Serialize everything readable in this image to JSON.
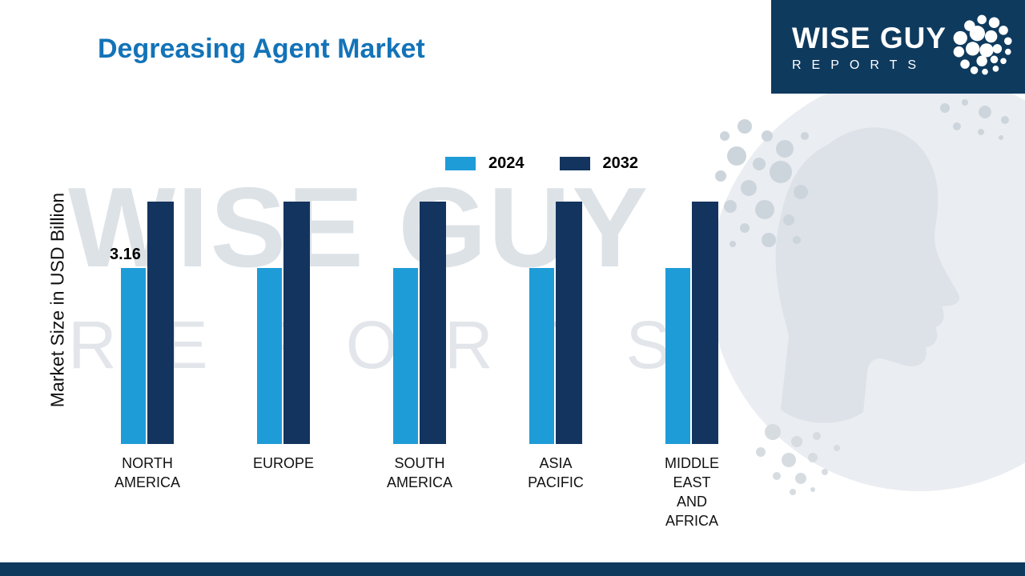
{
  "page": {
    "title": "Degreasing Agent Market",
    "ylabel": "Market Size in USD Billion"
  },
  "logo": {
    "name_line": "WISE GUY",
    "reports_line": "REPORTS"
  },
  "watermark": {
    "line1": "WISE GUY",
    "line2": "REPORTS"
  },
  "chart_data": {
    "type": "bar",
    "title": "Degreasing Agent Market",
    "ylabel": "Market Size in USD Billion",
    "categories": [
      "NORTH AMERICA",
      "EUROPE",
      "SOUTH AMERICA",
      "ASIA PACIFIC",
      "MIDDLE EAST AND AFRICA"
    ],
    "series": [
      {
        "name": "2024",
        "color": "#1e9cd8",
        "values": [
          3.16,
          3.16,
          3.16,
          3.16,
          3.16
        ]
      },
      {
        "name": "2032",
        "color": "#13345e",
        "values": [
          4.35,
          4.35,
          4.35,
          4.35,
          4.35
        ]
      }
    ],
    "value_labels": [
      {
        "text": "3.16",
        "series_index": 0,
        "category_index": 0
      }
    ],
    "axis": {
      "y_min": 0,
      "y_max": 4.6
    },
    "grid": false,
    "legend_position": "top-center"
  },
  "colors": {
    "title_blue": "#1373b8",
    "navy": "#0e3a5e",
    "light_blue": "#1e9cd8",
    "watermark_gray": "#bcc6d0",
    "circle_gray": "#eaedf1",
    "background": "#ffffff"
  }
}
